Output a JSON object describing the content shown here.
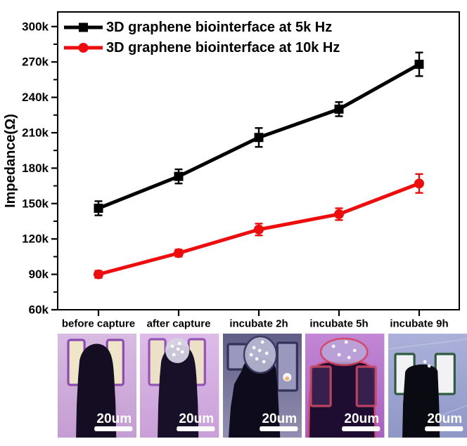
{
  "chart_data": {
    "type": "line",
    "title": "",
    "xlabel": "",
    "ylabel": "Impedance(Ω)",
    "y_unit": "kΩ",
    "grid": false,
    "legend_position": "top-left",
    "categories": [
      "before capture",
      "after capture",
      "incubate 2h",
      "incubate 5h",
      "incubate 9h"
    ],
    "y_axis": {
      "min_k": 60,
      "max_k": 300,
      "major_step_k": 30,
      "minor_step_k": 15,
      "tick_labels": [
        "60k",
        "90k",
        "120k",
        "150k",
        "180k",
        "210k",
        "240k",
        "270k",
        "300k"
      ]
    },
    "series": [
      {
        "name": "3D graphene biointerface at 5k Hz",
        "color": "#000000",
        "marker": "square",
        "values_k": [
          146,
          173,
          206,
          230,
          268
        ],
        "errors_k": [
          6,
          6,
          8,
          6,
          10
        ]
      },
      {
        "name": "3D graphene biointerface at 10k Hz",
        "color": "#ee0c0c",
        "marker": "circle",
        "values_k": [
          90,
          108,
          128,
          141,
          167
        ],
        "errors_k": [
          3,
          3,
          5,
          5,
          8
        ]
      }
    ]
  },
  "micrographs": [
    {
      "condition": "before capture",
      "scale_label": "20um",
      "bg_top": "#d8bbe2",
      "bg_bottom": "#c49dd2",
      "probe": "#150d22",
      "electrode_fill": "#efe6c9",
      "electrode_edge": "#8a4cae"
    },
    {
      "condition": "after capture",
      "scale_label": "20um",
      "bg_top": "#ddbbe8",
      "bg_bottom": "#c9a0d8",
      "probe": "#171028",
      "electrode_fill": "#ece1c6",
      "electrode_edge": "#9355b5",
      "blob": "#d6d2e2"
    },
    {
      "condition": "incubate 2h",
      "scale_label": "20um",
      "bg_top": "#605d86",
      "bg_bottom": "#928fb2",
      "probe": "#0e0b1c",
      "electrode_fill": "#9a98bc",
      "electrode_edge": "#34325a",
      "blob": "#b8bad4"
    },
    {
      "condition": "incubate 5h",
      "scale_label": "20um",
      "bg_top": "#c287d4",
      "bg_bottom": "#a85fc0",
      "probe": "#1e0d30",
      "electrode_fill": "#3a2252",
      "electrode_edge": "#c94a66",
      "blob": "#b9a6d8",
      "fringe": "#d84058"
    },
    {
      "condition": "incubate 9h",
      "scale_label": "20um",
      "bg_top": "#abb1da",
      "bg_bottom": "#8f97c6",
      "probe": "#0a0a12",
      "electrode_fill": "#f2f2f4",
      "electrode_edge": "#2f5b41"
    }
  ]
}
